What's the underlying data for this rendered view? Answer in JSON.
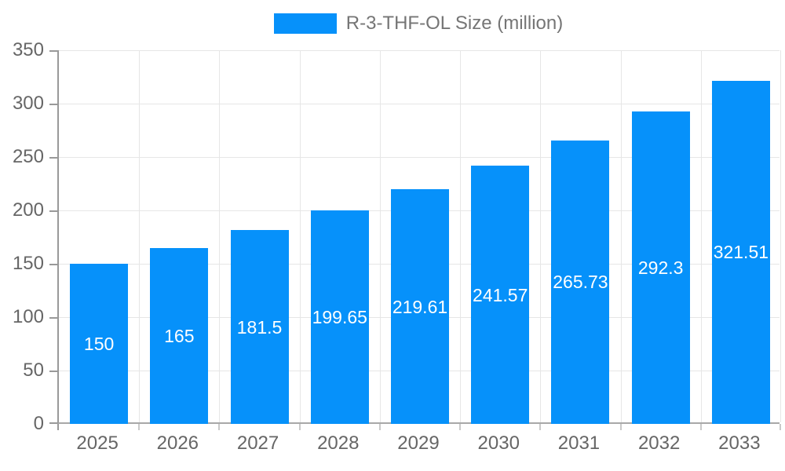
{
  "legend": {
    "label": "R-3-THF-OL Size (million)",
    "swatch_color": "#0691fa"
  },
  "chart_data": {
    "type": "bar",
    "title": "R-3-THF-OL Size (million)",
    "categories": [
      "2025",
      "2026",
      "2027",
      "2028",
      "2029",
      "2030",
      "2031",
      "2032",
      "2033"
    ],
    "values": [
      150,
      165,
      181.5,
      199.65,
      219.61,
      241.57,
      265.73,
      292.3,
      321.51
    ],
    "value_labels": [
      "150",
      "165",
      "181.5",
      "199.65",
      "219.61",
      "241.57",
      "265.73",
      "292.3",
      "321.51"
    ],
    "xlabel": "",
    "ylabel": "",
    "ylim": [
      0,
      350
    ],
    "ytick_step": 50,
    "ytick_labels": [
      "0",
      "50",
      "100",
      "150",
      "200",
      "250",
      "300",
      "350"
    ],
    "grid": true,
    "legend_position": "top-center",
    "colors": {
      "bar": "#0691fa",
      "axis_text": "#666666",
      "legend_text": "#757575",
      "grid_line": "#e6e6e6",
      "y_axis_line": "#999999",
      "x_axis_line": "#a8a8a8",
      "value_label": "#ffffff",
      "background": "#ffffff"
    }
  }
}
